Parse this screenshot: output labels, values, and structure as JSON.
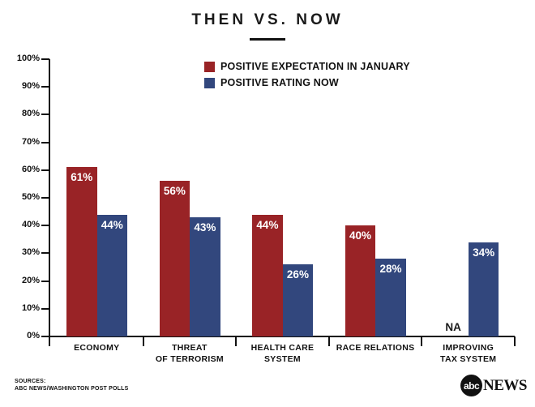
{
  "title": "THEN VS. NOW",
  "chart_data": {
    "type": "bar",
    "title": "THEN VS. NOW",
    "categories": [
      "ECONOMY",
      "THREAT\nOF TERRORISM",
      "HEALTH CARE SYSTEM",
      "RACE RELATIONS",
      "IMPROVING\nTAX SYSTEM"
    ],
    "series": [
      {
        "name": "POSITIVE EXPECTATION IN JANUARY",
        "color": "#992326",
        "values": [
          61,
          56,
          44,
          40,
          null
        ]
      },
      {
        "name": "POSITIVE RATING NOW",
        "color": "#32477d",
        "values": [
          44,
          43,
          26,
          28,
          34
        ]
      }
    ],
    "value_label_suffix": "%",
    "na_label": "NA",
    "ylim": [
      0,
      100
    ],
    "y_tick_step": 10,
    "y_tick_labels": [
      "0%",
      "10%",
      "20%",
      "30%",
      "40%",
      "50%",
      "60%",
      "70%",
      "80%",
      "90%",
      "100%"
    ],
    "legend_position": "top-center",
    "grid": false,
    "axis_color": "#111111"
  },
  "footer": {
    "sources_line1": "SOURCES:",
    "sources_line2": "ABC NEWS/WASHINGTON POST POLLS",
    "logo_abc": "abc",
    "logo_news": "NEWS"
  }
}
